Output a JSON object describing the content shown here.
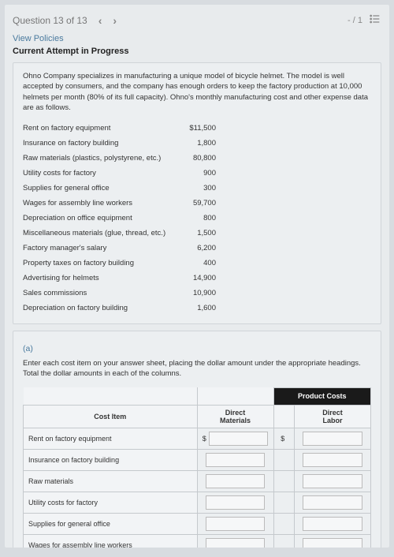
{
  "header": {
    "question_label": "Question 13 of 13",
    "score": "- / 1",
    "view_policies": "View Policies",
    "attempt_title": "Current Attempt in Progress"
  },
  "problem": {
    "intro": "Ohno Company specializes in manufacturing a unique model of bicycle helmet. The model is well accepted by consumers, and the company has enough orders to keep the factory production at 10,000 helmets per month (80% of its full capacity). Ohno's monthly manufacturing cost and other expense data are as follows.",
    "costs": [
      {
        "label": "Rent on factory equipment",
        "value": "$11,500"
      },
      {
        "label": "Insurance on factory building",
        "value": "1,800"
      },
      {
        "label": "Raw materials (plastics, polystyrene, etc.)",
        "value": "80,800"
      },
      {
        "label": "Utility costs for factory",
        "value": "900"
      },
      {
        "label": "Supplies for general office",
        "value": "300"
      },
      {
        "label": "Wages for assembly line workers",
        "value": "59,700"
      },
      {
        "label": "Depreciation on office equipment",
        "value": "800"
      },
      {
        "label": "Miscellaneous materials (glue, thread, etc.)",
        "value": "1,500"
      },
      {
        "label": "Factory manager's salary",
        "value": "6,200"
      },
      {
        "label": "Property taxes on factory building",
        "value": "400"
      },
      {
        "label": "Advertising for helmets",
        "value": "14,900"
      },
      {
        "label": "Sales commissions",
        "value": "10,900"
      },
      {
        "label": "Depreciation on factory building",
        "value": "1,600"
      }
    ]
  },
  "part_a": {
    "label": "(a)",
    "instructions": "Enter each cost item on your answer sheet, placing the dollar amount under the appropriate headings. Total the dollar amounts in each of the columns.",
    "table": {
      "group_header": "Product Costs",
      "col_cost_item": "Cost Item",
      "col_direct_materials": "Direct\nMaterials",
      "col_direct_labor": "Direct\nLabor",
      "rows": [
        "Rent on factory equipment",
        "Insurance on factory building",
        "Raw materials",
        "Utility costs for factory",
        "Supplies for general office",
        "Wages for assembly line workers"
      ]
    }
  }
}
